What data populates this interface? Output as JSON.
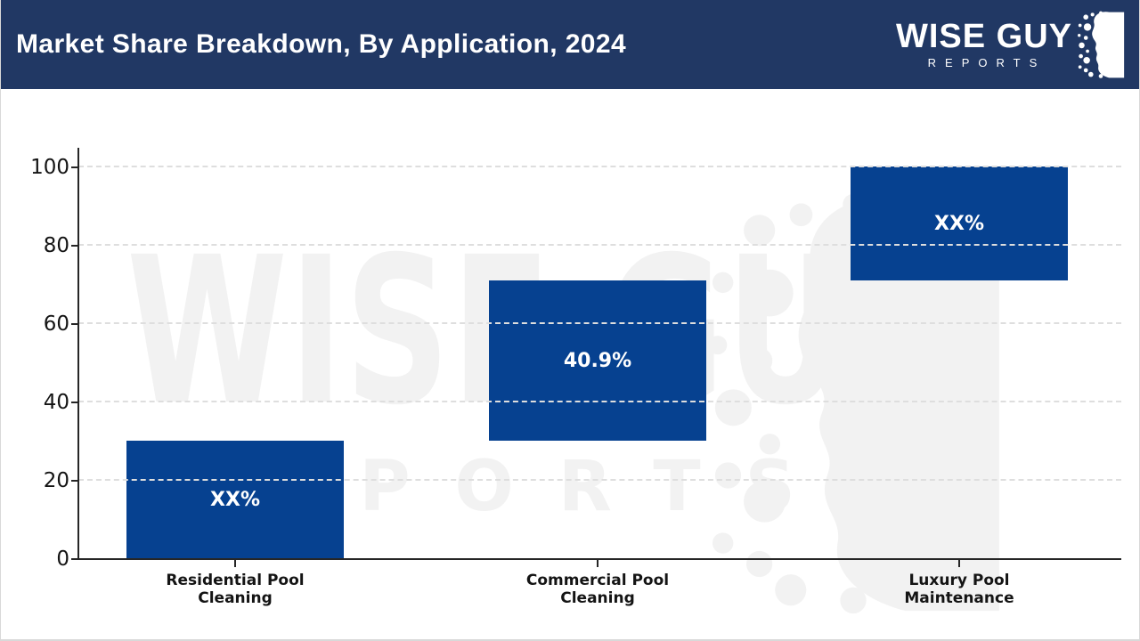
{
  "header": {
    "title": "Market Share Breakdown, By Application, 2024",
    "logo": {
      "name_line": "WISE GUY",
      "reports_line": "REPORTS"
    }
  },
  "watermark": {
    "name_line": "WISE GUY",
    "reports_line": "REPORTS"
  },
  "chart_data": {
    "type": "bar",
    "variant": "floating_segment_bars",
    "title": "Market Share Breakdown, By Application, 2024",
    "categories": [
      {
        "line1": "Residential Pool",
        "line2": "Cleaning"
      },
      {
        "line1": "Commercial Pool",
        "line2": "Cleaning"
      },
      {
        "line1": "Luxury Pool",
        "line2": "Maintenance"
      }
    ],
    "segments": [
      {
        "category": "Residential Pool Cleaning",
        "from": 0,
        "to": 30,
        "label": "XX%"
      },
      {
        "category": "Commercial Pool Cleaning",
        "from": 30,
        "to": 70.9,
        "label": "40.9%"
      },
      {
        "category": "Luxury Pool Maintenance",
        "from": 70.9,
        "to": 100,
        "label": "XX%"
      }
    ],
    "yticks": [
      0,
      20,
      40,
      60,
      80,
      100
    ],
    "ylim": [
      0,
      104
    ],
    "xlabel": "",
    "ylabel": "",
    "grid": "horizontal-dashed",
    "legend": "none",
    "bar_color": "#064190",
    "bar_label_color": "#ffffff"
  },
  "colors": {
    "header_bg": "#213864",
    "bar": "#064190",
    "axis": "#262626",
    "gridline": "#dedede",
    "watermark": "#f2f2f2",
    "page_border": "#d9d9d9"
  }
}
